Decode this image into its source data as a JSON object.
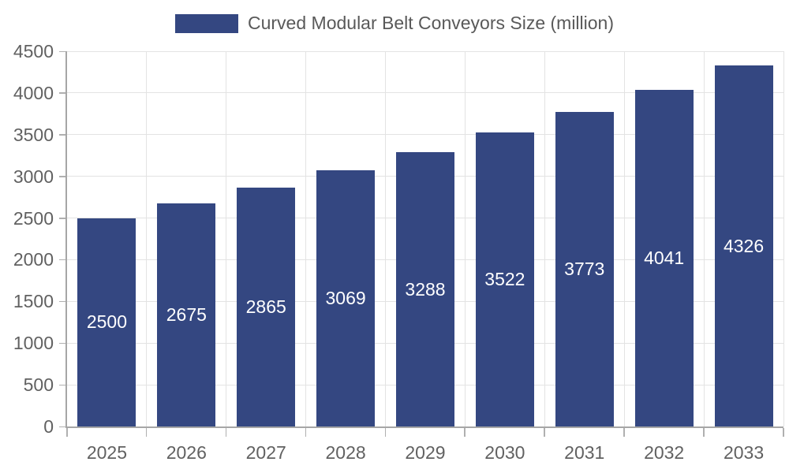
{
  "legend": {
    "label": "Curved Modular Belt Conveyors Size (million)"
  },
  "chart_data": {
    "type": "bar",
    "title": "Curved Modular Belt Conveyors Size (million)",
    "series_name": "Curved Modular Belt Conveyors Size (million)",
    "categories": [
      "2025",
      "2026",
      "2027",
      "2028",
      "2029",
      "2030",
      "2031",
      "2032",
      "2033"
    ],
    "values": [
      2500,
      2675,
      2865,
      3069,
      3288,
      3522,
      3773,
      4041,
      4326
    ],
    "xlabel": "",
    "ylabel": "",
    "ylim": [
      0,
      4500
    ],
    "yticks": [
      0,
      500,
      1000,
      1500,
      2000,
      2500,
      3000,
      3500,
      4000,
      4500
    ],
    "grid": true,
    "legend_position": "top",
    "bar_color": "#344781",
    "value_label_color": "#ffffff",
    "grid_color": "#e3e3e3",
    "axis_color": "#a6a6a6",
    "tick_color": "#b0b0b0",
    "tick_label_color": "#616161"
  }
}
